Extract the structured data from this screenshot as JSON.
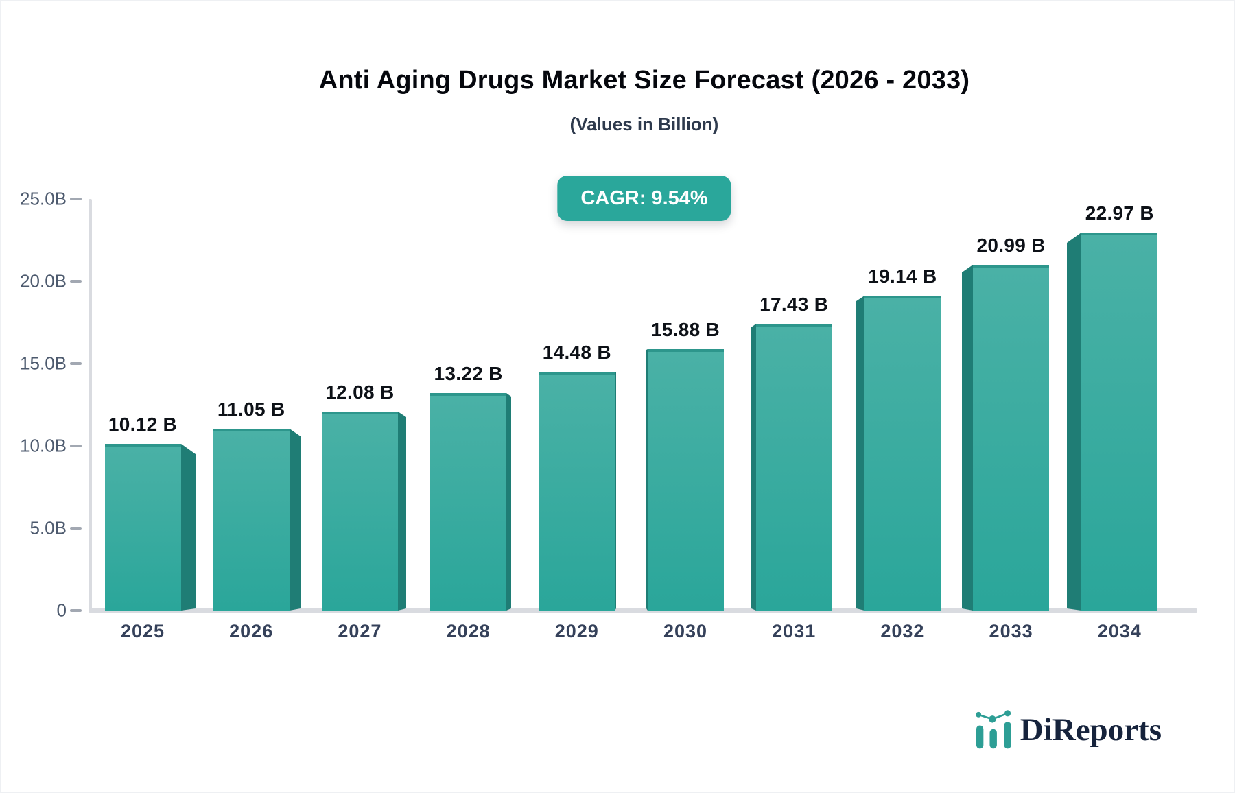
{
  "header": {
    "title": "Anti Aging Drugs Market Size Forecast (2026 - 2033)",
    "subtitle": "(Values in Billion)",
    "cagr_badge": "CAGR: 9.54%"
  },
  "chart_data": {
    "type": "bar",
    "title": "Anti Aging Drugs Market Size Forecast (2026 - 2033)",
    "subtitle": "(Values in Billion)",
    "categories": [
      "2025",
      "2026",
      "2027",
      "2028",
      "2029",
      "2030",
      "2031",
      "2032",
      "2033",
      "2034"
    ],
    "values": [
      10.12,
      11.05,
      12.08,
      13.22,
      14.48,
      15.88,
      17.43,
      19.14,
      20.99,
      22.97
    ],
    "value_labels": [
      "10.12 B",
      "11.05 B",
      "12.08 B",
      "13.22 B",
      "14.48 B",
      "15.88 B",
      "17.43 B",
      "19.14 B",
      "20.99 B",
      "22.97 B"
    ],
    "unit": "Billion",
    "annotation": "CAGR: 9.54%",
    "ylim": [
      0,
      25
    ],
    "y_ticks": [
      "25.0B",
      "20.0B",
      "15.0B",
      "10.0B",
      "5.0B",
      "0"
    ],
    "grid": false,
    "legend": "none",
    "bar_style": "3d-perspective-teal"
  },
  "colors": {
    "bar_face_top": "#4ab1a6",
    "bar_face_bottom": "#2aa69a",
    "bar_top_edge": "#2d968c",
    "bar_side": "#1f7d75",
    "badge_bg": "#2aa79b",
    "badge_text": "#ffffff",
    "axis_line": "#d9dbe0",
    "tick_dash": "#a2a8b2",
    "y_label_text": "#4d5a6e",
    "x_label_text": "#35415a",
    "value_label_text": "#0d1117",
    "logo_navy": "#16233c",
    "logo_teal": "#2d9e95"
  },
  "footer": {
    "logo_text": "DiReports"
  }
}
